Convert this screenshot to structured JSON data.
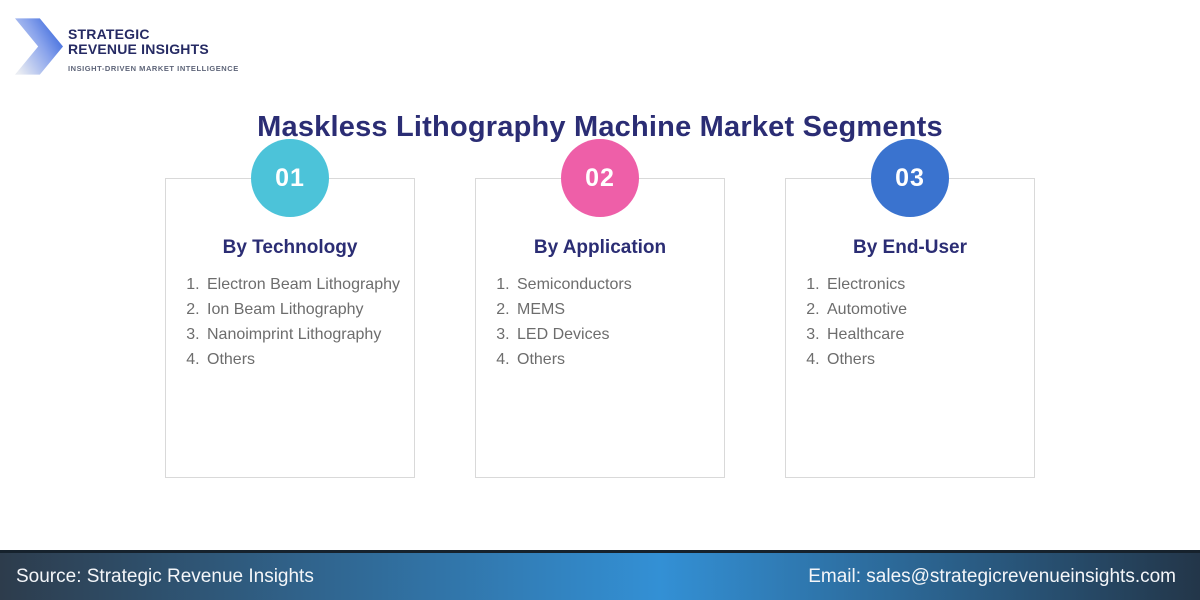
{
  "logo": {
    "name_line1": "STRATEGIC",
    "name_line2": "REVENUE INSIGHTS",
    "tagline": "INSIGHT-DRIVEN MARKET INTELLIGENCE"
  },
  "title": "Maskless Lithography Machine Market Segments",
  "cards": [
    {
      "number": "01",
      "badge_color": "#4cc3d9",
      "heading": "By Technology",
      "items": [
        "Electron Beam Lithography",
        "Ion Beam Lithography",
        "Nanoimprint Lithography",
        "Others"
      ]
    },
    {
      "number": "02",
      "badge_color": "#ee5fa8",
      "heading": "By Application",
      "items": [
        "Semiconductors",
        "MEMS",
        "LED Devices",
        "Others"
      ]
    },
    {
      "number": "03",
      "badge_color": "#3a73cf",
      "heading": "By End-User",
      "items": [
        "Electronics",
        "Automotive",
        "Healthcare",
        "Others"
      ]
    }
  ],
  "footer": {
    "source": "Source: Strategic Revenue Insights",
    "email": "Email: sales@strategicrevenueinsights.com",
    "gradient_left": "#2d3c4c",
    "gradient_mid": "#3390d5",
    "gradient_right": "#233649"
  },
  "colors": {
    "title_navy": "#2b2d74",
    "logo_navy": "#252a63",
    "list_gray": "#6d6d6d",
    "card_border": "#d9d9d9"
  }
}
